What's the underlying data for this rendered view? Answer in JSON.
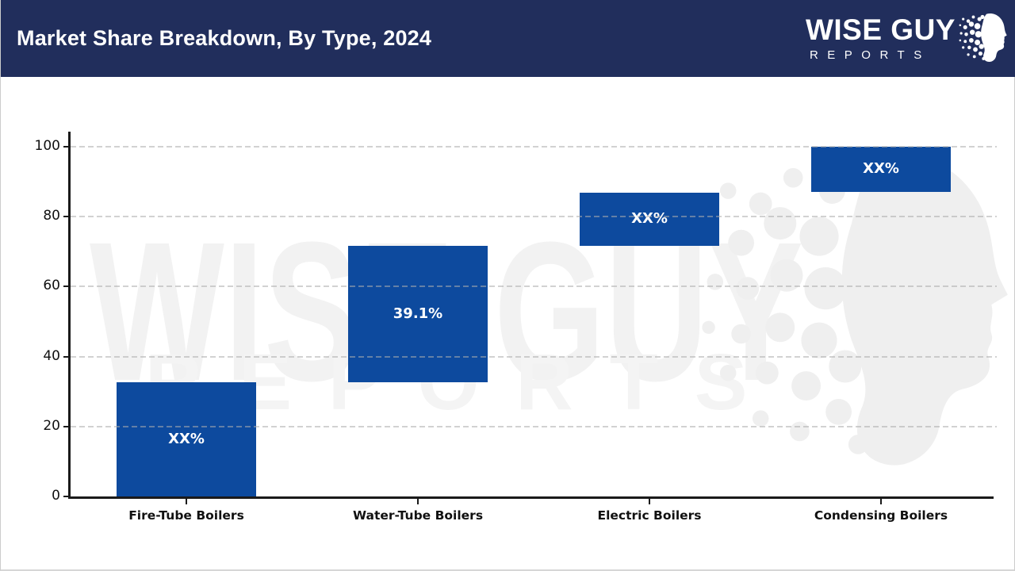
{
  "header": {
    "title": "Market Share Breakdown, By Type, 2024",
    "logo": {
      "name": "WISE GUY",
      "tagline": "REPORTS"
    }
  },
  "watermark": {
    "line1": "WISE GUY",
    "line2": "REPORTS"
  },
  "colors": {
    "header_bg": "#212E5C",
    "bar": "#0D4A9E",
    "bar_label": "#ffffff",
    "axis": "#1a1a1a",
    "grid": "#d9d9d9",
    "watermark": "#f2f2f2"
  },
  "chart_data": {
    "type": "bar",
    "subtype": "waterfall",
    "title": "Market Share Breakdown, By Type, 2024",
    "categories": [
      "Fire-Tube Boilers",
      "Water-Tube Boilers",
      "Electric Boilers",
      "Condensing Boilers"
    ],
    "segments": [
      {
        "category": "Fire-Tube Boilers",
        "start": 0,
        "end": 32.6,
        "label": "XX%"
      },
      {
        "category": "Water-Tube Boilers",
        "start": 32.6,
        "end": 71.7,
        "label": "39.1%"
      },
      {
        "category": "Electric Boilers",
        "start": 71.7,
        "end": 86.9,
        "label": "XX%"
      },
      {
        "category": "Condensing Boilers",
        "start": 87.1,
        "end": 100,
        "label": "XX%"
      }
    ],
    "xlabel": "",
    "ylabel": "",
    "yticks": [
      0,
      20,
      40,
      60,
      80,
      100
    ],
    "ylim": [
      0,
      105
    ],
    "grid": "horizontal-dashed",
    "legend": "none",
    "bar_color": "#0D4A9E"
  }
}
